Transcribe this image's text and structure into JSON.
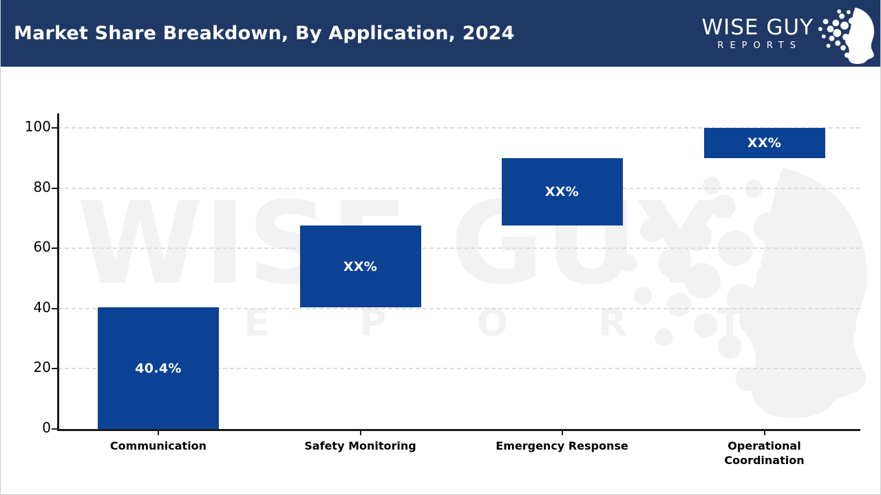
{
  "header": {
    "title": "Market Share Breakdown, By Application, 2024",
    "background_color": "#1f3865",
    "logo": {
      "line1": "WISE GUY",
      "line2": "REPORTS"
    }
  },
  "watermark": {
    "line1": "WISE GUY",
    "line2": "R E P O R T S"
  },
  "chart_data": {
    "type": "bar",
    "subtype": "waterfall",
    "title": "Market Share Breakdown, By Application, 2024",
    "categories": [
      "Communication",
      "Safety Monitoring",
      "Emergency Response",
      "Operational Coordination"
    ],
    "series": [
      {
        "name": "Market Share (%)",
        "segments": [
          {
            "category": "Communication",
            "start": 0,
            "end": 40.4,
            "label": "40.4%"
          },
          {
            "category": "Safety Monitoring",
            "start": 40.4,
            "end": 67.5,
            "label": "XX%"
          },
          {
            "category": "Emergency Response",
            "start": 67.5,
            "end": 90,
            "label": "XX%"
          },
          {
            "category": "Operational Coordination",
            "start": 90,
            "end": 100,
            "label": "XX%"
          }
        ]
      }
    ],
    "yticks": [
      0,
      20,
      40,
      60,
      80,
      100
    ],
    "ylim": [
      0,
      105
    ],
    "xlabel": "",
    "ylabel": "",
    "grid": "horizontal-dashed",
    "legend": "none",
    "bar_color": "#0c4294",
    "gridline_color": "#dcdcdc"
  }
}
